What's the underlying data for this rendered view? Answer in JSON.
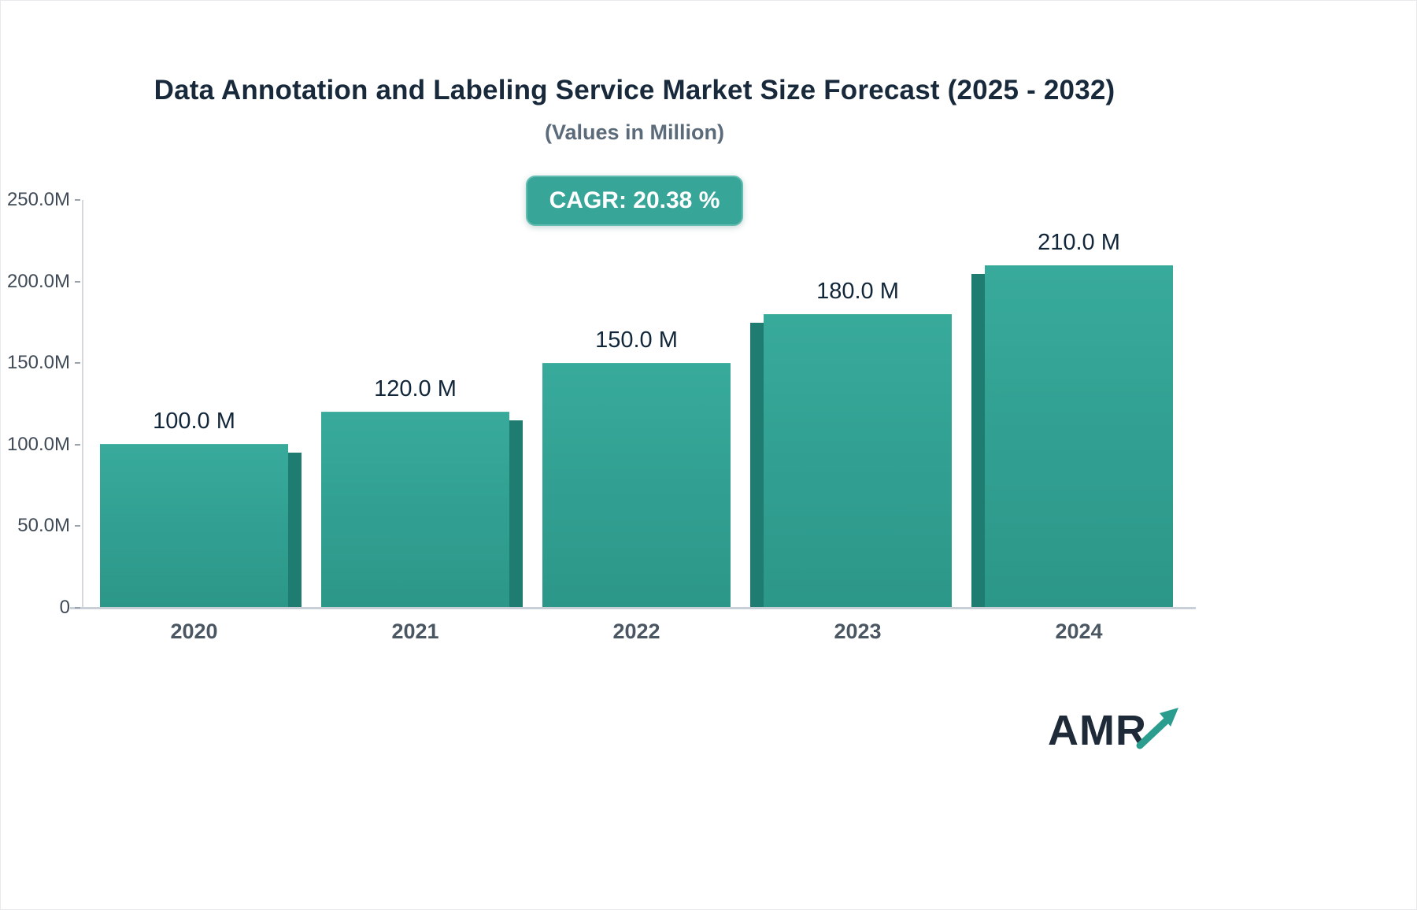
{
  "header": {
    "title": "Data Annotation and Labeling Service Market Size Forecast (2025 - 2032)",
    "subtitle": "(Values in Million)"
  },
  "badge": {
    "label": "CAGR: 20.38 %",
    "bg": "#37a597",
    "text_color": "#ffffff"
  },
  "chart_data": {
    "type": "bar",
    "title": "Data Annotation and Labeling Service Market Size Forecast (2025 - 2032)",
    "subtitle": "(Values in Million)",
    "categories": [
      "2020",
      "2021",
      "2022",
      "2023",
      "2024"
    ],
    "values": [
      100,
      120,
      150,
      180,
      210
    ],
    "value_labels": [
      "100.0 M",
      "120.0 M",
      "150.0 M",
      "180.0 M",
      "210.0 M"
    ],
    "xlabel": "",
    "ylabel": "",
    "ylim": [
      0,
      250
    ],
    "yticks": [
      0,
      50,
      100,
      150,
      200,
      250
    ],
    "ytick_labels": [
      "0",
      "50.0M",
      "100.0M",
      "150.0M",
      "200.0M",
      "250.0M"
    ],
    "grid": false,
    "legend": "none",
    "bar_color": "#31a092",
    "bar_side_color": "#1e7c70",
    "annotation": "CAGR: 20.38 %"
  },
  "logo": {
    "text": "AMR",
    "arrow_color": "#2a9d8f"
  }
}
